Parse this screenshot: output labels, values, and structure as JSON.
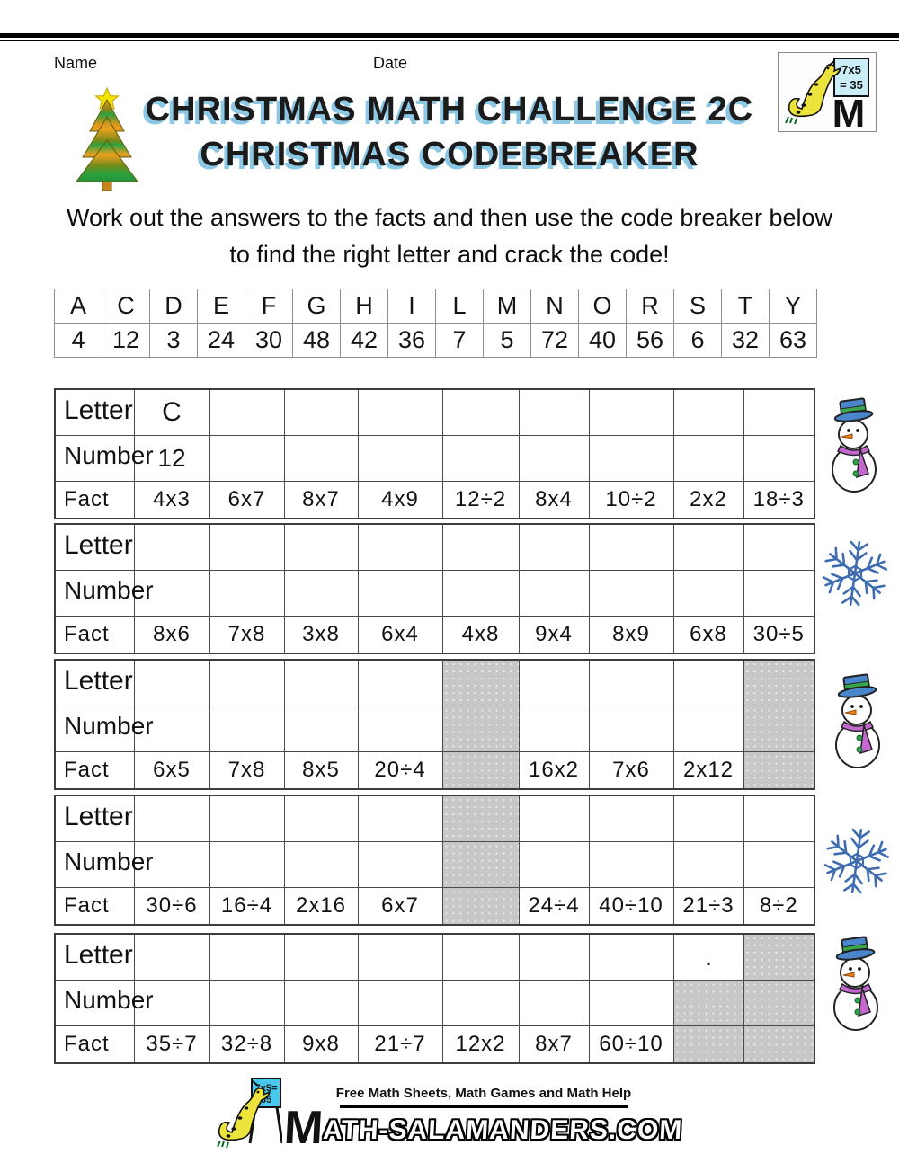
{
  "header": {
    "name_label": "Name",
    "date_label": "Date"
  },
  "logo": {
    "sign_line1": "7x5",
    "sign_line2": "= 35",
    "monogram": "M"
  },
  "title": {
    "line1": "CHRISTMAS MATH CHALLENGE 2C",
    "line2": "CHRISTMAS CODEBREAKER"
  },
  "instructions": {
    "line1": "Work out the answers to the facts and then use the code breaker below",
    "line2": "to find the right letter and crack the code!"
  },
  "code_table": {
    "letters": [
      "A",
      "C",
      "D",
      "E",
      "F",
      "G",
      "H",
      "I",
      "L",
      "M",
      "N",
      "O",
      "R",
      "S",
      "T",
      "Y"
    ],
    "numbers": [
      "4",
      "12",
      "3",
      "24",
      "30",
      "48",
      "42",
      "36",
      "7",
      "5",
      "72",
      "40",
      "56",
      "6",
      "32",
      "63"
    ]
  },
  "row_labels": {
    "letter": "Letter",
    "number": "Number",
    "fact": "Fact"
  },
  "puzzle_tables": [
    {
      "decoration": "snowman",
      "columns": [
        {
          "letter": "C",
          "number": "12",
          "fact": "4x3"
        },
        {
          "letter": "",
          "number": "",
          "fact": "6x7"
        },
        {
          "letter": "",
          "number": "",
          "fact": "8x7"
        },
        {
          "letter": "",
          "number": "",
          "fact": "4x9"
        },
        {
          "letter": "",
          "number": "",
          "fact": "12÷2"
        },
        {
          "letter": "",
          "number": "",
          "fact": "8x4"
        },
        {
          "letter": "",
          "number": "",
          "fact": "10÷2"
        },
        {
          "letter": "",
          "number": "",
          "fact": "2x2"
        },
        {
          "letter": "",
          "number": "",
          "fact": "18÷3"
        }
      ]
    },
    {
      "decoration": "snowflake",
      "columns": [
        {
          "letter": "",
          "number": "",
          "fact": "8x6"
        },
        {
          "letter": "",
          "number": "",
          "fact": "7x8"
        },
        {
          "letter": "",
          "number": "",
          "fact": "3x8"
        },
        {
          "letter": "",
          "number": "",
          "fact": "6x4"
        },
        {
          "letter": "",
          "number": "",
          "fact": "4x8"
        },
        {
          "letter": "",
          "number": "",
          "fact": "9x4"
        },
        {
          "letter": "",
          "number": "",
          "fact": "8x9"
        },
        {
          "letter": "",
          "number": "",
          "fact": "6x8"
        },
        {
          "letter": "",
          "number": "",
          "fact": "30÷5"
        }
      ]
    },
    {
      "decoration": "snowman",
      "columns": [
        {
          "letter": "",
          "number": "",
          "fact": "6x5"
        },
        {
          "letter": "",
          "number": "",
          "fact": "7x8"
        },
        {
          "letter": "",
          "number": "",
          "fact": "8x5"
        },
        {
          "letter": "",
          "number": "",
          "fact": "20÷4"
        },
        {
          "letter": "",
          "number": "",
          "fact": "",
          "shaded_rows": [
            "letter",
            "number",
            "fact"
          ]
        },
        {
          "letter": "",
          "number": "",
          "fact": "16x2"
        },
        {
          "letter": "",
          "number": "",
          "fact": "7x6"
        },
        {
          "letter": "",
          "number": "",
          "fact": "2x12"
        },
        {
          "letter": "",
          "number": "",
          "fact": "",
          "shaded_rows": [
            "letter",
            "number",
            "fact"
          ]
        }
      ]
    },
    {
      "decoration": "snowflake",
      "columns": [
        {
          "letter": "",
          "number": "",
          "fact": "30÷6"
        },
        {
          "letter": "",
          "number": "",
          "fact": "16÷4"
        },
        {
          "letter": "",
          "number": "",
          "fact": "2x16"
        },
        {
          "letter": "",
          "number": "",
          "fact": "6x7"
        },
        {
          "letter": "",
          "number": "",
          "fact": "",
          "shaded_rows": [
            "letter",
            "number",
            "fact"
          ]
        },
        {
          "letter": "",
          "number": "",
          "fact": "24÷4"
        },
        {
          "letter": "",
          "number": "",
          "fact": "40÷10"
        },
        {
          "letter": "",
          "number": "",
          "fact": "21÷3"
        },
        {
          "letter": "",
          "number": "",
          "fact": "8÷2"
        }
      ]
    },
    {
      "decoration": "snowman",
      "columns": [
        {
          "letter": "",
          "number": "",
          "fact": "35÷7"
        },
        {
          "letter": "",
          "number": "",
          "fact": "32÷8"
        },
        {
          "letter": "",
          "number": "",
          "fact": "9x8"
        },
        {
          "letter": "",
          "number": "",
          "fact": "21÷7"
        },
        {
          "letter": "",
          "number": "",
          "fact": "12x2"
        },
        {
          "letter": "",
          "number": "",
          "fact": "8x7"
        },
        {
          "letter": "",
          "number": "",
          "fact": "60÷10"
        },
        {
          "letter": ".",
          "number": "",
          "fact": "",
          "shaded_rows": [
            "number",
            "fact"
          ]
        },
        {
          "letter": "",
          "number": "",
          "fact": "",
          "shaded_rows": [
            "letter",
            "number",
            "fact"
          ]
        }
      ]
    }
  ],
  "footer": {
    "tagline": "Free Math Sheets, Math Games and Math Help",
    "wordmark_m": "M",
    "wordmark_rest": "ATH-SALAMANDERS.COM",
    "sign_line1": "7x5=",
    "sign_line2": "35"
  },
  "colors": {
    "title_shadow": "#8cc7e4",
    "shade_gray": "#c7c7c7",
    "snowflake_blue": "#3e6cb0",
    "snowman_hat_blue": "#4a86cc",
    "snowman_hat_band_green": "#3aa54a",
    "scarf_purple": "#c468cf",
    "tree_orange": "#f0a01e",
    "tree_green": "#2ba23e",
    "salamander_yellow": "#ece33c",
    "sign_cyan": "#aee4f2"
  }
}
